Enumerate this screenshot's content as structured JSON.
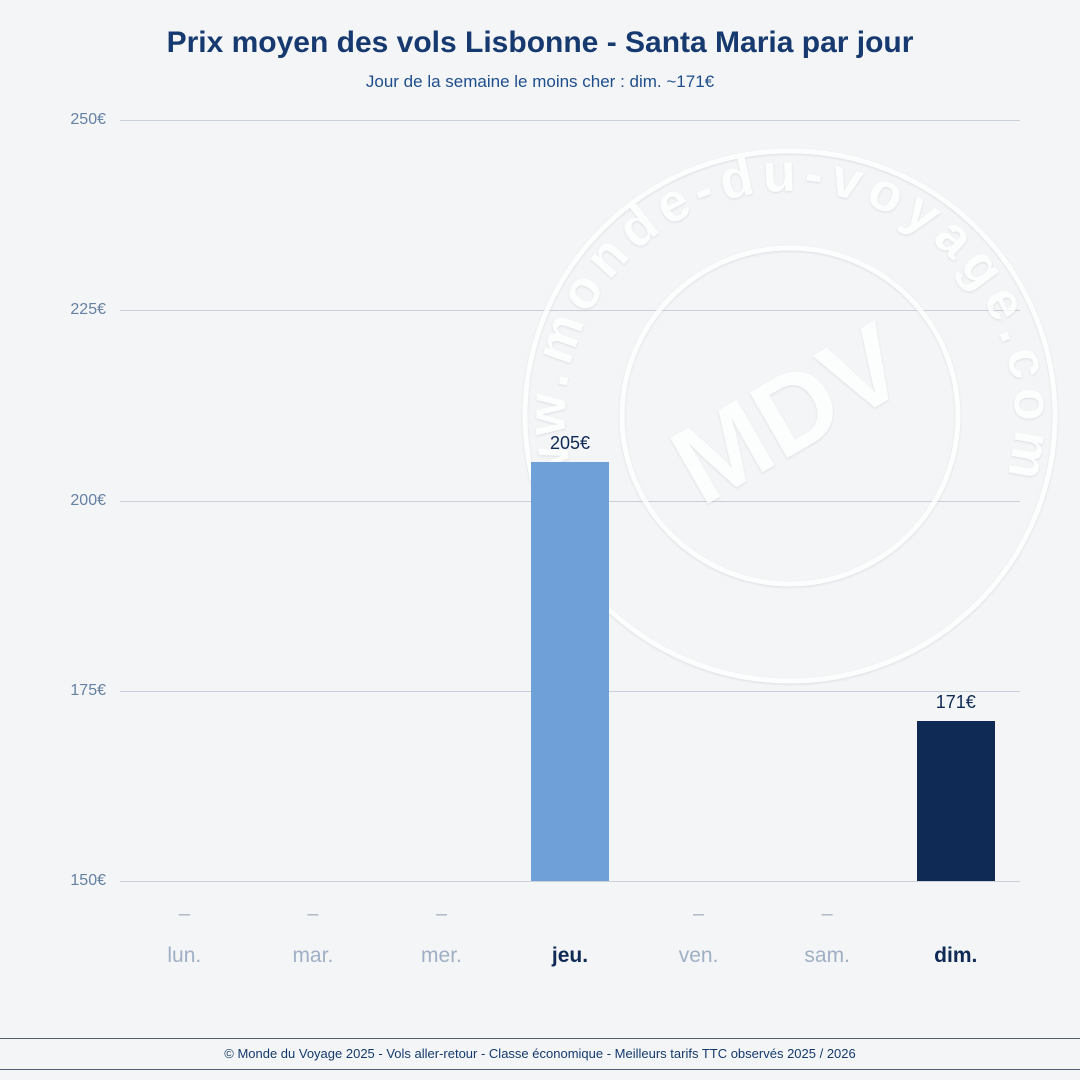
{
  "chart_data": {
    "type": "bar",
    "title": "Prix moyen des vols Lisbonne - Santa Maria par jour",
    "subtitle": "Jour de la semaine le moins cher : dim. ~171€",
    "categories": [
      "lun.",
      "mar.",
      "mer.",
      "jeu.",
      "ven.",
      "sam.",
      "dim."
    ],
    "values": [
      null,
      null,
      null,
      205,
      null,
      null,
      171
    ],
    "bar_colors": [
      null,
      null,
      null,
      "#6fa1d8",
      null,
      null,
      "#0f2a55"
    ],
    "value_label_suffix": "€",
    "no_data_marker": "–",
    "xlabel": "",
    "ylabel": "",
    "ylim": [
      150,
      250
    ],
    "yticks": [
      250,
      225,
      200,
      175,
      150
    ],
    "ytick_suffix": "€",
    "grid": true,
    "legend": "none",
    "highlighted_categories": [
      "jeu.",
      "dim."
    ]
  },
  "watermark": {
    "ring_text": "www.monde-du-voyage.com",
    "center_text": "MDV"
  },
  "footer": {
    "text": "© Monde du Voyage 2025 - Vols aller-retour - Classe économique - Meilleurs tarifs TTC observés 2025 / 2026"
  },
  "colors": {
    "background": "#f4f5f6",
    "title": "#16396f",
    "subtitle": "#1e4e8c",
    "bar_light": "#6fa1d8",
    "bar_dark": "#0f2a55",
    "gridline": "#c9d0d9",
    "axis_text": "#6581a3",
    "inactive_label": "#9fb0c6",
    "footer_text": "#143a6d"
  }
}
